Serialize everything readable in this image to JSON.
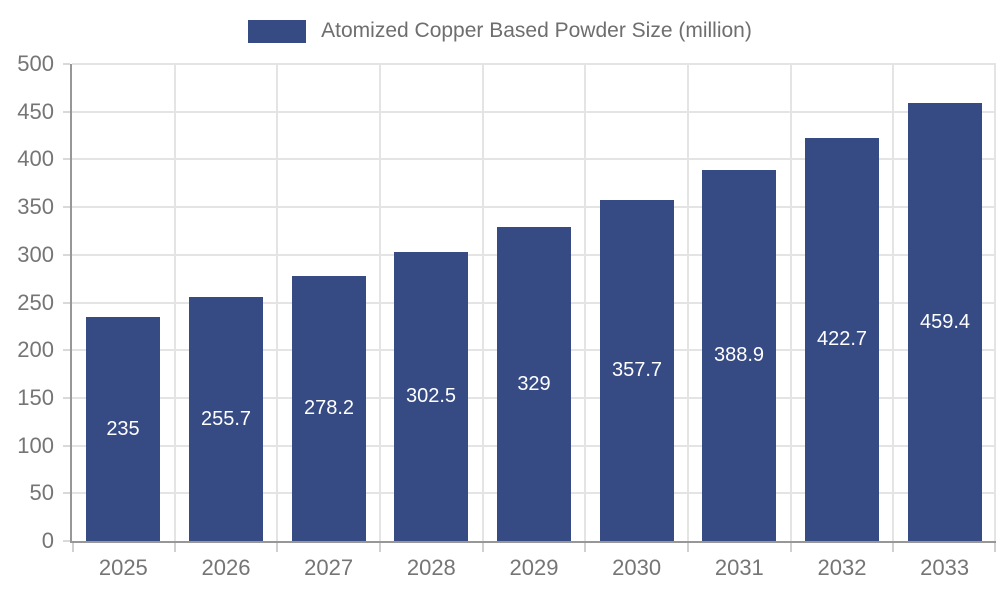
{
  "chart_data": {
    "type": "bar",
    "title": "",
    "legend": "Atomized Copper Based Powder Size (million)",
    "legend_position": "top",
    "categories": [
      "2025",
      "2026",
      "2027",
      "2028",
      "2029",
      "2030",
      "2031",
      "2032",
      "2033"
    ],
    "series": [
      {
        "name": "Atomized Copper Based Powder Size (million)",
        "values": [
          235,
          255.7,
          278.2,
          302.5,
          329,
          357.7,
          388.9,
          422.7,
          459.4
        ],
        "value_labels": [
          "235",
          "255.7",
          "278.2",
          "302.5",
          "329",
          "357.7",
          "388.9",
          "422.7",
          "459.4"
        ]
      }
    ],
    "xlabel": "",
    "ylabel": "",
    "ylim": [
      0,
      500
    ],
    "yticks": [
      0,
      50,
      100,
      150,
      200,
      250,
      300,
      350,
      400,
      450,
      500
    ],
    "grid": "both",
    "colors": {
      "bar": "#364a84",
      "axis_line": "#979797",
      "grid_line": "#e4e4e4",
      "tick_label": "#757575",
      "legend_text": "#6e6e6e",
      "value_label": "#ffffff",
      "background": "#ffffff"
    }
  }
}
